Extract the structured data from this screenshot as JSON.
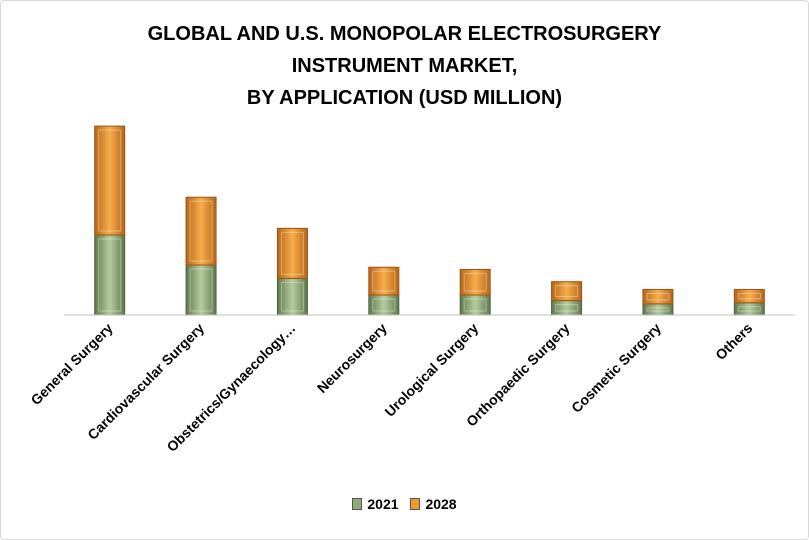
{
  "chart_data": {
    "type": "bar",
    "stacked": true,
    "title_lines": [
      "GLOBAL AND U.S. MONOPOLAR ELECTROSURGERY",
      "INSTRUMENT MARKET,",
      "BY APPLICATION (USD MILLION)"
    ],
    "categories": [
      "General Surgery",
      "Cardiovascular Surgery",
      "Obstetrics/Gynaecology…",
      "Neurosurgery",
      "Urological Surgery",
      "Orthopaedic Surgery",
      "Cosmetic Surgery",
      "Others"
    ],
    "series": [
      {
        "name": "2021",
        "values": [
          72,
          45,
          33,
          18,
          18,
          13,
          10,
          11
        ],
        "color": "#8eaa7a"
      },
      {
        "name": "2028",
        "values": [
          98,
          61,
          45,
          25,
          23,
          17,
          13,
          12
        ],
        "color": "#f0992e"
      }
    ],
    "ylim": [
      0,
      180
    ],
    "grid": false,
    "legend_position": "bottom"
  }
}
